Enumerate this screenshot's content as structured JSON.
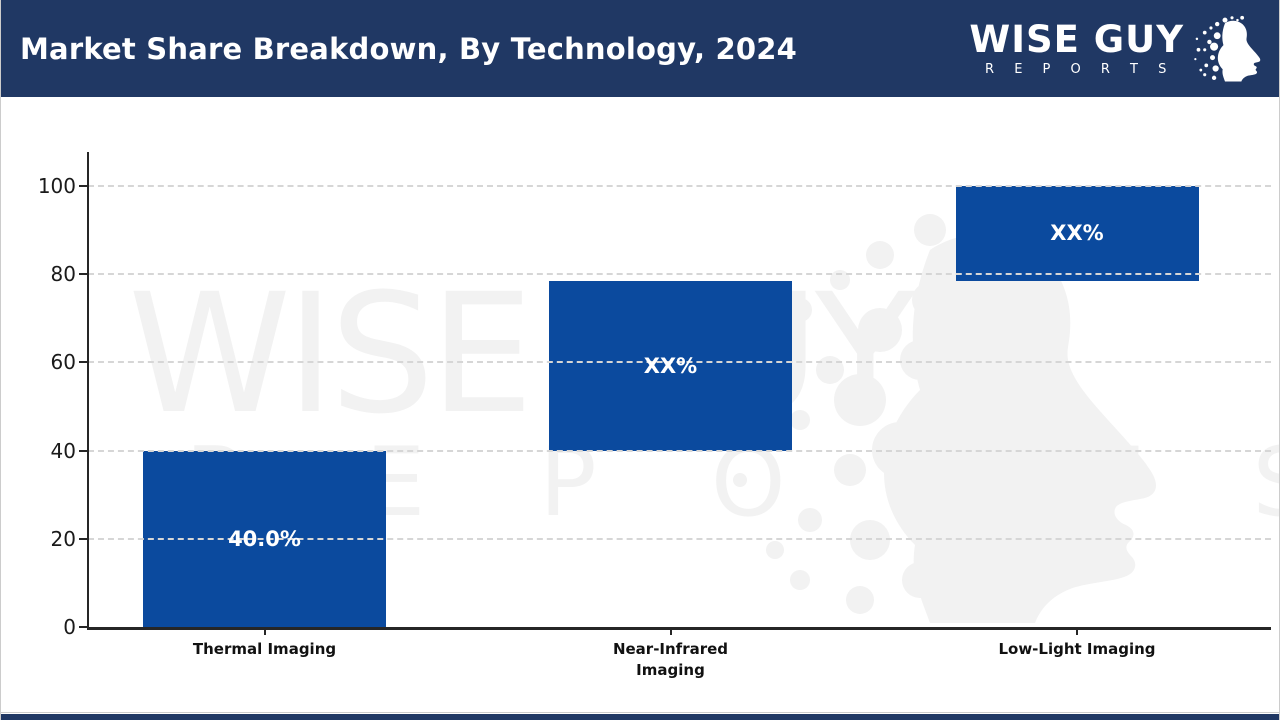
{
  "header": {
    "title": "Market Share Breakdown, By Technology, 2024",
    "logo": {
      "line1": "WISE GUY",
      "line2": "R E P O R T S"
    }
  },
  "watermark": {
    "line1": "WISE GUY",
    "line2": "R E P O R T S"
  },
  "chart_data": {
    "type": "bar",
    "subtype": "waterfall",
    "title": "Market Share Breakdown, By Technology, 2024",
    "categories": [
      "Thermal Imaging",
      "Near-Infrared\nImaging",
      "Low-Light Imaging"
    ],
    "segments": [
      {
        "category": "Thermal Imaging",
        "base": 0,
        "top": 40,
        "label": "40.0%"
      },
      {
        "category": "Near-Infrared Imaging",
        "base": 40,
        "top": 78.5,
        "label": "XX%"
      },
      {
        "category": "Low-Light Imaging",
        "base": 78.5,
        "top": 100,
        "label": "XX%"
      }
    ],
    "xlabel": "",
    "ylabel": "",
    "ylim": [
      0,
      100
    ],
    "yticks": [
      0,
      20,
      40,
      60,
      80,
      100
    ],
    "grid": "horizontal-dashed",
    "legend": "none"
  },
  "colors": {
    "header_bg": "#203864",
    "bar": "#0b4a9e",
    "bar_label": "#ffffff",
    "gridline": "#d6d6d6",
    "axis": "#262626",
    "watermark": "#f2f2f2",
    "canvas_border": "#cccccc"
  }
}
